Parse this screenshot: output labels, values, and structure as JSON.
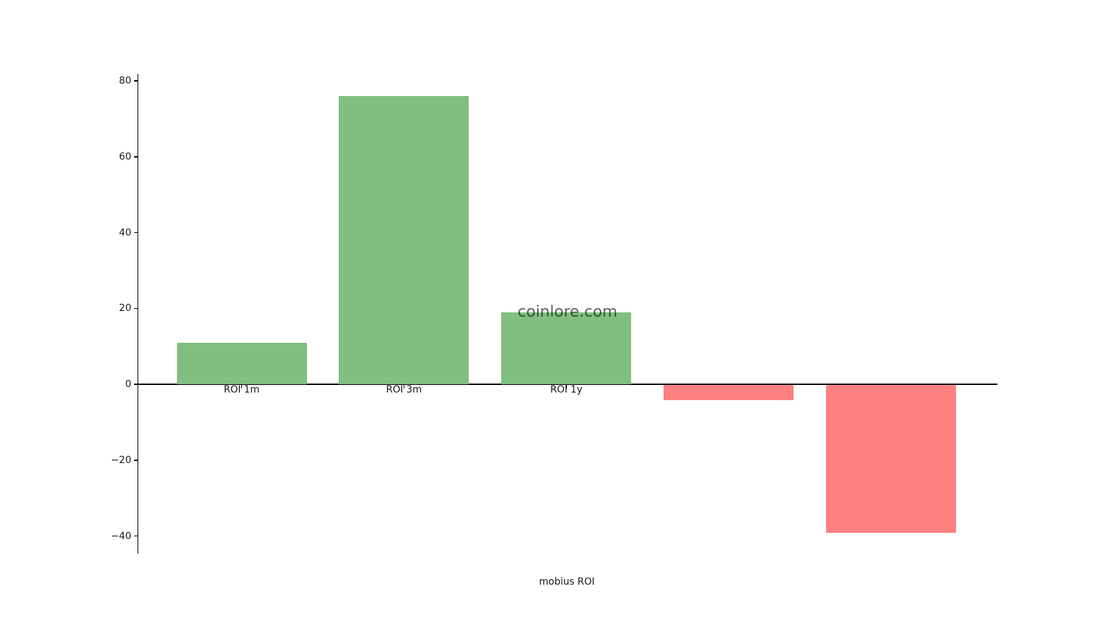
{
  "page": {
    "background": "#ffffff"
  },
  "chart_data": {
    "type": "bar",
    "categories": [
      "ROI 1m",
      "ROI 3m",
      "ROI 1y",
      "",
      ""
    ],
    "values": [
      11,
      76,
      19,
      -4,
      -39
    ],
    "title": "",
    "xlabel": "mobius ROI",
    "ylabel": "",
    "ylim": [
      -45,
      82
    ],
    "yticks": [
      80,
      60,
      40,
      20,
      0,
      -20,
      -40
    ],
    "grid": false,
    "legend": false,
    "bar_color_positive": "#80bf80",
    "bar_color_negative": "#ff8080",
    "axis_color": "#000000",
    "tick_label_color": "#1a1a1a",
    "watermark": "coinlore.com"
  }
}
